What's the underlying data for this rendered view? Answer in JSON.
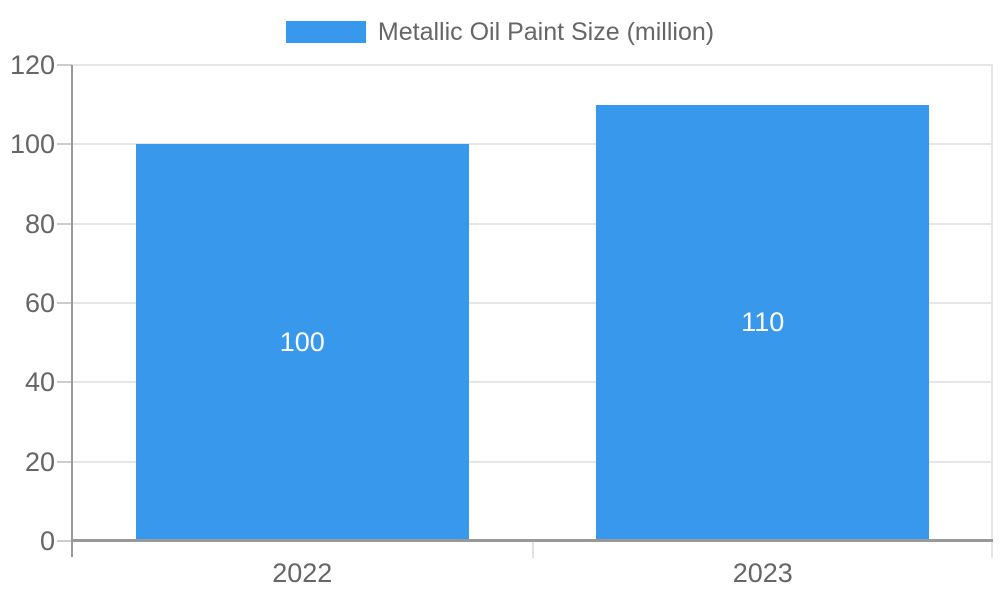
{
  "chart_data": {
    "type": "bar",
    "title": "Metallic Oil Paint Size (million)",
    "categories": [
      "2022",
      "2023"
    ],
    "series": [
      {
        "name": "Metallic Oil Paint Size (million)",
        "values": [
          100,
          110
        ]
      }
    ],
    "data_labels": [
      "100",
      "110"
    ],
    "ylim": [
      0,
      120
    ],
    "yticks": [
      0,
      20,
      40,
      60,
      80,
      100,
      120
    ],
    "xlabel": "",
    "ylabel": "",
    "grid": true,
    "legend_position": "top"
  },
  "legend": {
    "label": "Metallic Oil Paint Size (million)"
  },
  "colors": {
    "bar": "#3899EC",
    "axis": "#999999",
    "grid": "#E6E6E6",
    "y_tick": "#CCCCCC",
    "x_tick_light": "#E0E0E0",
    "text": "#666666",
    "data_label": "#FFFFFF",
    "background": "#FFFFFF"
  }
}
